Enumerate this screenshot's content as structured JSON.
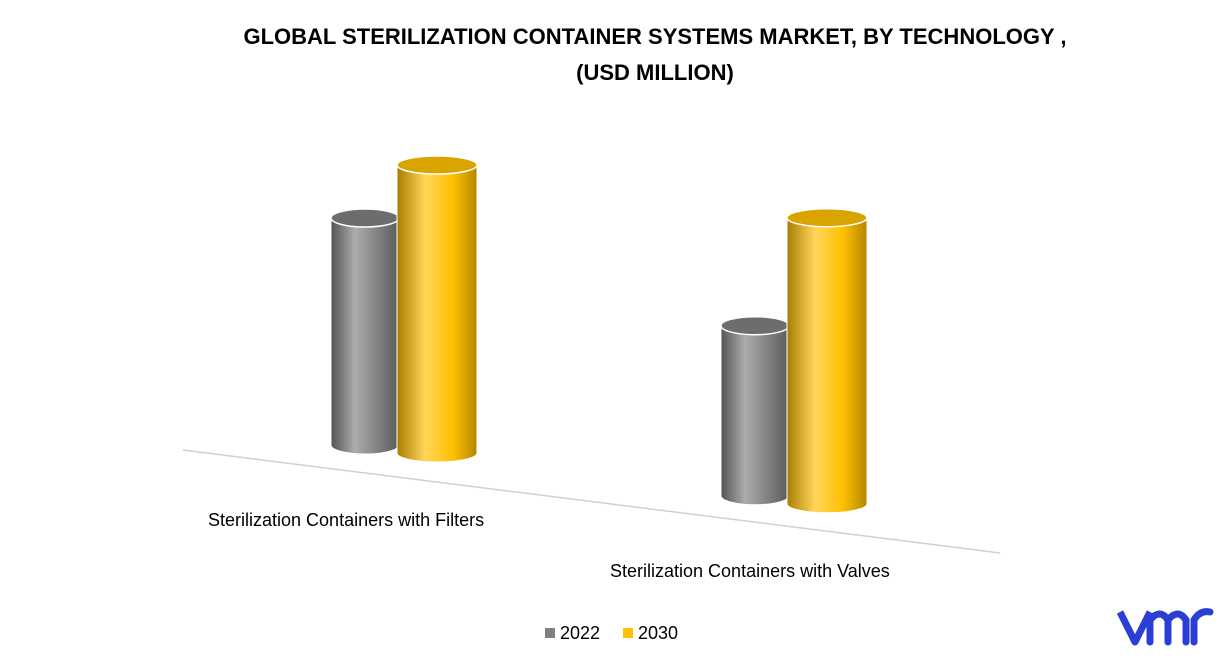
{
  "chart_data": {
    "type": "bar3d",
    "title": "GLOBAL STERILIZATION CONTAINER SYSTEMS MARKET, BY TECHNOLOGY ,",
    "subtitle": "(USD MILLION)",
    "categories": [
      "Sterilization Containers with Filters",
      "Sterilization Containers with Valves"
    ],
    "series": [
      {
        "name": "2022",
        "color": "#808080",
        "values": [
          227,
          170
        ]
      },
      {
        "name": "2030",
        "color": "#ffc000",
        "values": [
          288,
          286
        ]
      }
    ],
    "ylim": [
      0,
      300
    ],
    "legend": "bottom"
  }
}
